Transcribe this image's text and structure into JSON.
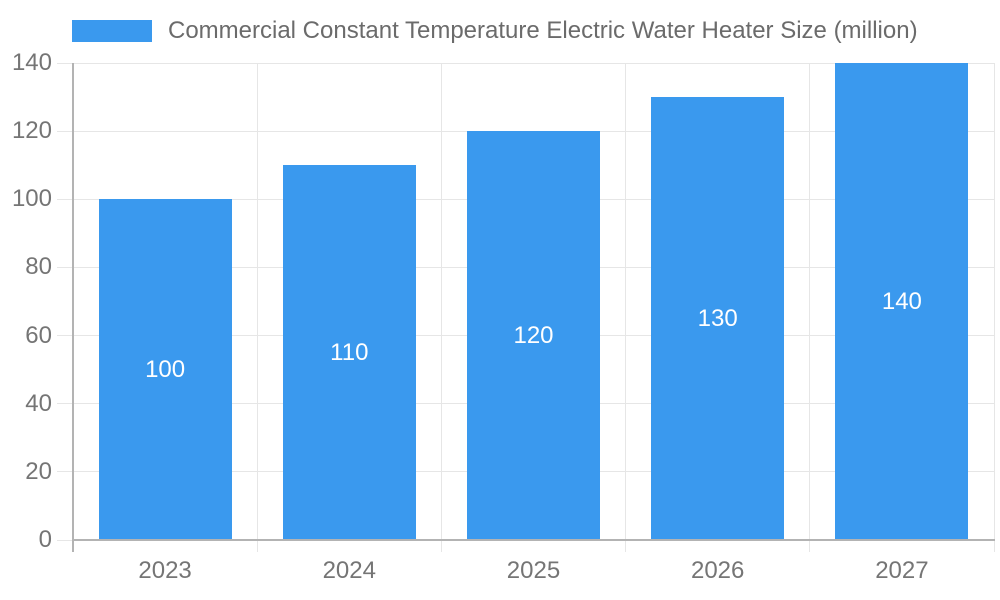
{
  "legend": {
    "label": "Commercial Constant Temperature Electric Water Heater Size (million)"
  },
  "chart_data": {
    "type": "bar",
    "title": "Commercial Constant Temperature Electric Water Heater Size (million)",
    "series_name": "Commercial Constant Temperature Electric Water Heater Size (million)",
    "categories": [
      "2023",
      "2024",
      "2025",
      "2026",
      "2027"
    ],
    "values": [
      100,
      110,
      120,
      130,
      140
    ],
    "bar_labels": [
      "100",
      "110",
      "120",
      "130",
      "140"
    ],
    "xlabel": "",
    "ylabel": "",
    "ylim": [
      0,
      140
    ],
    "yticks": [
      0,
      20,
      40,
      60,
      80,
      100,
      120,
      140
    ],
    "grid": true,
    "legend_position": "top-left"
  },
  "colors": {
    "bar": "#3A99EE",
    "grid": "#E6E6E6",
    "axis": "#B3B3B3",
    "tick_text": "#757575",
    "legend_text": "#6B6B6B",
    "bar_label_text": "#FFFFFF",
    "background": "#FFFFFF"
  }
}
